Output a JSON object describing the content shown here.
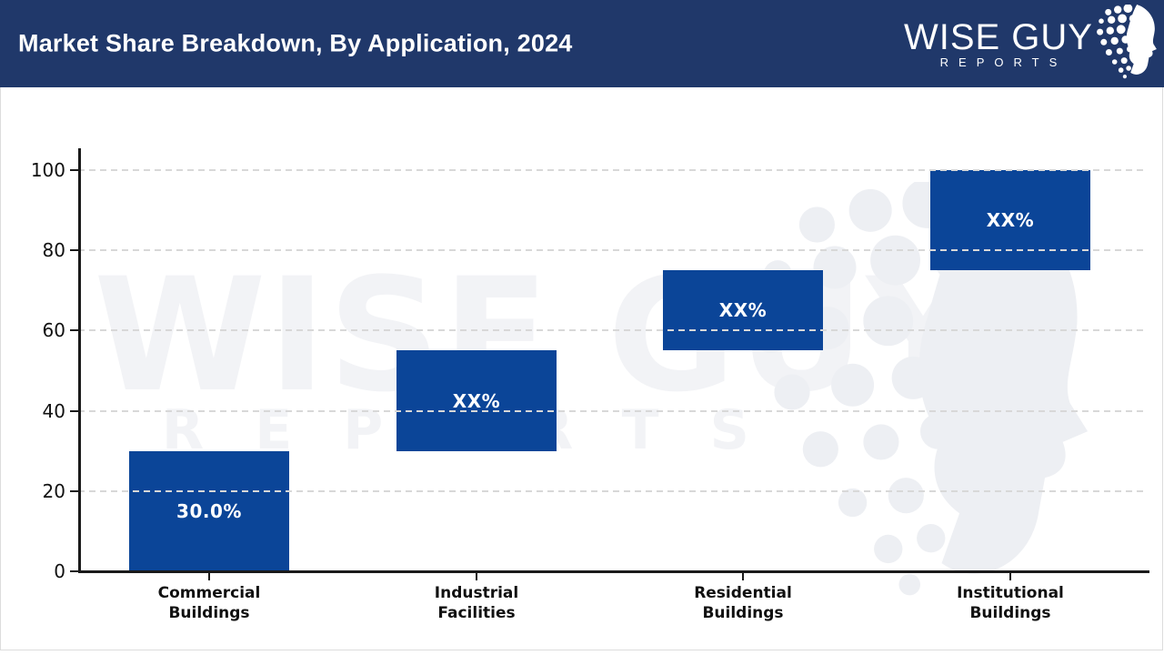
{
  "header": {
    "title": "Market Share Breakdown, By Application, 2024",
    "background_color": "#20386a",
    "logo": {
      "wordmark": "WISE GUY",
      "subtext": "REPORTS"
    }
  },
  "watermark": {
    "wordmark": "WISE GUY",
    "subtext": "REPORTS"
  },
  "chart_data": {
    "type": "bar",
    "subtype": "waterfall-stepped",
    "title": "Market Share Breakdown, By Application, 2024",
    "categories": [
      "Commercial\nBuildings",
      "Industrial\nFacilities",
      "Residential\nBuildings",
      "Institutional\nBuildings"
    ],
    "series": [
      {
        "name": "Market Share",
        "segments": [
          {
            "category": "Commercial Buildings",
            "start": 0,
            "end": 30,
            "label": "30.0%"
          },
          {
            "category": "Industrial Facilities",
            "start": 30,
            "end": 55,
            "label": "XX%"
          },
          {
            "category": "Residential Buildings",
            "start": 55,
            "end": 75,
            "label": "XX%"
          },
          {
            "category": "Institutional Buildings",
            "start": 75,
            "end": 100,
            "label": "XX%"
          }
        ]
      }
    ],
    "yticks": [
      0,
      20,
      40,
      60,
      80,
      100
    ],
    "ylim": [
      0,
      105
    ],
    "xlabel": "",
    "ylabel": "",
    "grid": "horizontal-dashed",
    "legend_position": "none",
    "colors": {
      "bar": "#0b4598",
      "grid": "#d8d8d8",
      "axis": "#1a1a1a",
      "bar_label": "#ffffff",
      "tick_label": "#111111"
    }
  }
}
